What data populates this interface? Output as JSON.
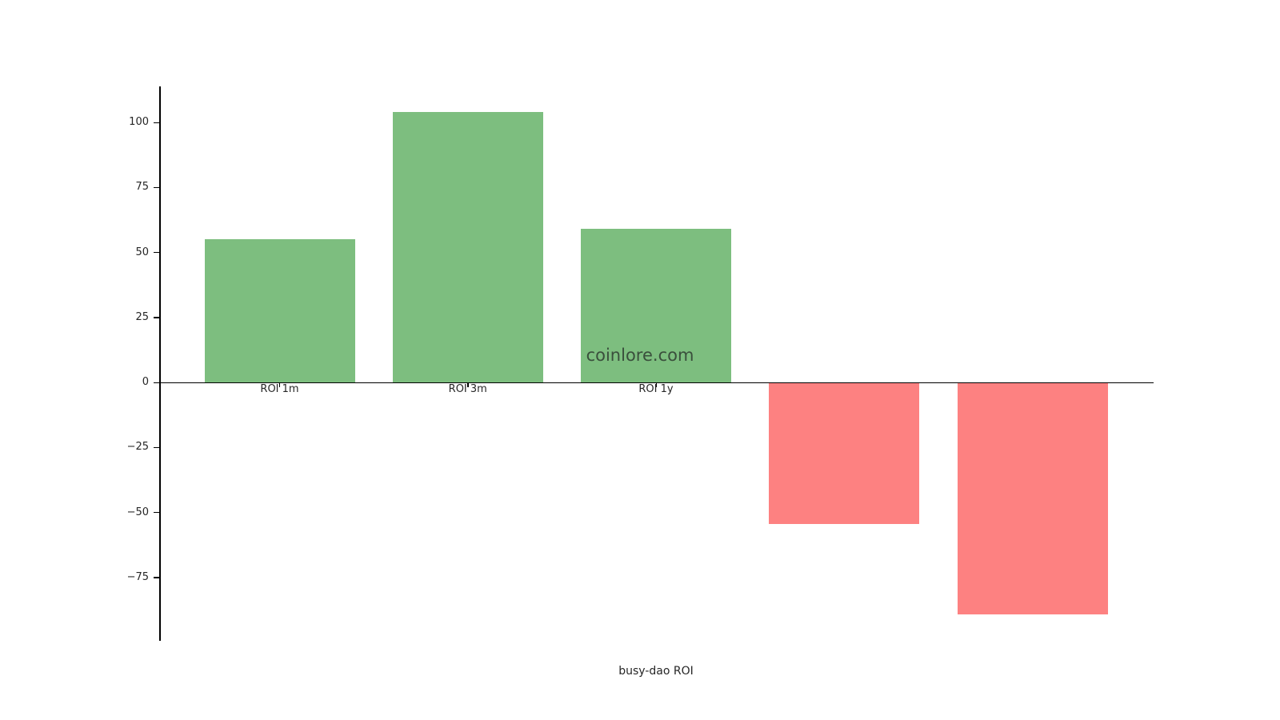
{
  "figure": {
    "watermark": "coinlore.com",
    "xlabel": "busy-dao ROI"
  },
  "chart_data": {
    "type": "bar",
    "title": "",
    "xlabel": "busy-dao ROI",
    "ylabel": "",
    "categories": [
      "ROI 1m",
      "ROI 3m",
      "ROI 1y",
      "",
      ""
    ],
    "visible_category_labels": [
      "ROI 1m",
      "ROI 3m",
      "ROI 1y"
    ],
    "values": [
      55,
      104,
      59,
      -54,
      -89
    ],
    "bar_colors": [
      "#7dbe7f",
      "#7dbe7f",
      "#7dbe7f",
      "#fd8181",
      "#fd8181"
    ],
    "positive_color": "#7dbe7f",
    "negative_color": "#fd8181",
    "y_ticks": [
      100,
      75,
      50,
      25,
      0,
      -25,
      -50,
      -75
    ],
    "ylim": [
      -99,
      114
    ],
    "xlim": [
      -0.64,
      4.64
    ],
    "grid": false,
    "legend": null,
    "watermark": "coinlore.com",
    "notes": "labels of the two negative bars are hidden behind the red bars"
  }
}
